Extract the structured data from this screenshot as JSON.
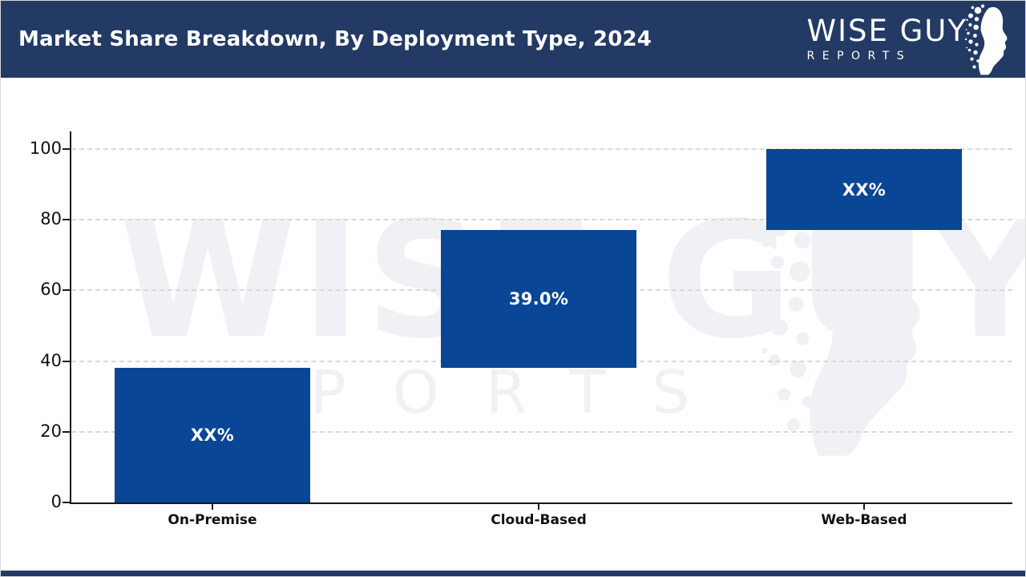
{
  "header": {
    "title": "Market Share Breakdown, By Deployment Type, 2024",
    "logo": {
      "line1": "WISE GUY",
      "line2": "REPORTS"
    }
  },
  "watermark": {
    "line1": "WISE GUY",
    "line2": "REPORTS"
  },
  "chart_data": {
    "type": "bar",
    "subtype": "waterfall",
    "title": "Market Share Breakdown, By Deployment Type, 2024",
    "categories": [
      "On-Premise",
      "Cloud-Based",
      "Web-Based"
    ],
    "series": [
      {
        "name": "Market share (%)",
        "segments": [
          {
            "category": "On-Premise",
            "start": 0,
            "end": 38,
            "label": "XX%"
          },
          {
            "category": "Cloud-Based",
            "start": 38,
            "end": 77,
            "label": "39.0%"
          },
          {
            "category": "Web-Based",
            "start": 77,
            "end": 100,
            "label": "XX%"
          }
        ]
      }
    ],
    "xlabel": "",
    "ylabel": "",
    "ylim": [
      0,
      105
    ],
    "yticks": [
      0,
      20,
      40,
      60,
      80,
      100
    ],
    "grid": "horizontal-dashed",
    "legend": "none",
    "bar_color": "#0A4696",
    "bar_label_color": "#FFFFFF"
  },
  "colors": {
    "header_bg": "#233A65",
    "footer_bg": "#233A65",
    "bar": "#0A4696",
    "grid": "#D9D9D9",
    "axis": "#1A1A1A",
    "tick_text": "#111111",
    "watermark": "#F0F1F4",
    "page_bg": "#FFFFFF"
  }
}
